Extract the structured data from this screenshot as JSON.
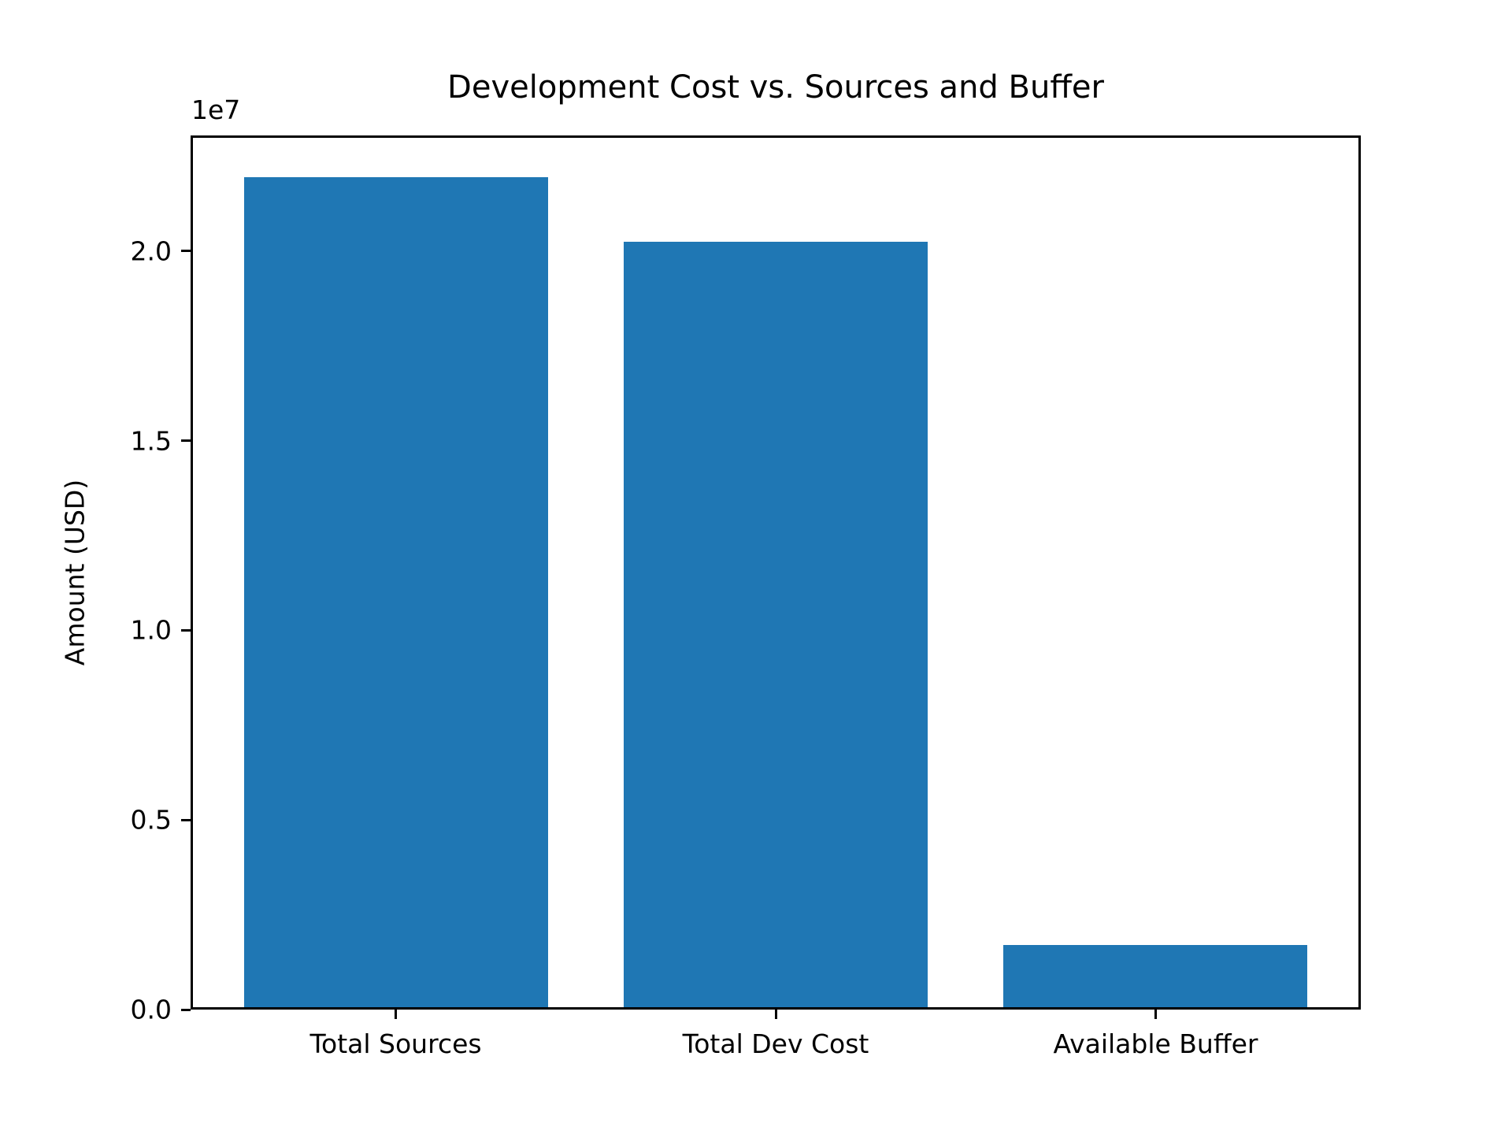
{
  "chart_data": {
    "type": "bar",
    "title": "Development Cost vs. Sources and Buffer",
    "xlabel": "",
    "ylabel": "Amount (USD)",
    "categories": [
      "Total Sources",
      "Total Dev Cost",
      "Available Buffer"
    ],
    "values": [
      21950000,
      20250000,
      1700000
    ],
    "bar_color": "#1f77b4",
    "axis_color": "#000000",
    "background_color": "#ffffff",
    "ylim": [
      0,
      23047500
    ],
    "yticks": [
      0,
      5000000,
      10000000,
      15000000,
      20000000
    ],
    "ytick_labels": [
      "0.0",
      "0.5",
      "1.0",
      "1.5",
      "2.0"
    ],
    "y_offset_label": "1e7",
    "grid": false,
    "legend": null
  }
}
